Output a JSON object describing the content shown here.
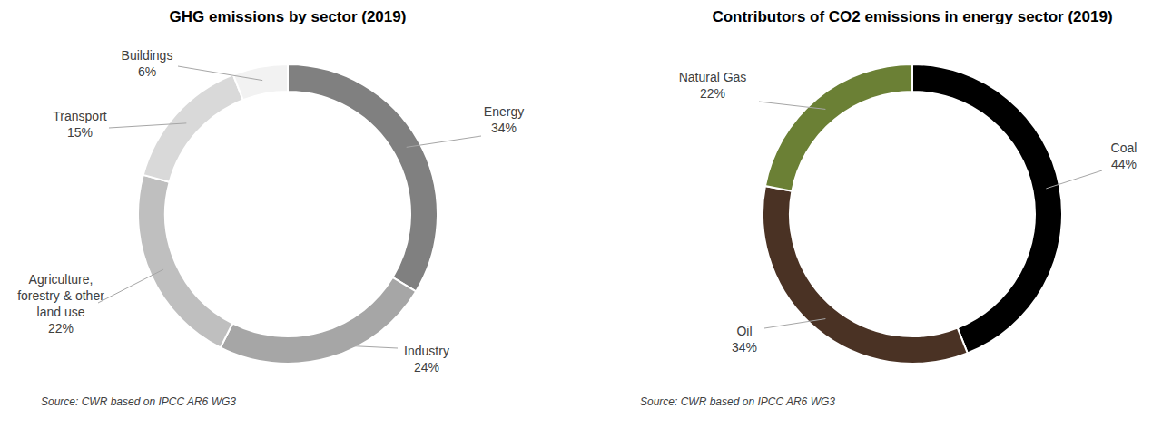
{
  "chart_data": [
    {
      "type": "donut",
      "title": "GHG emissions by sector (2019)",
      "categories": [
        "Energy",
        "Industry",
        "Agriculture,\nforestry & other\nland use",
        "Transport",
        "Buildings"
      ],
      "values": [
        34,
        24,
        22,
        15,
        6
      ],
      "value_labels": [
        "34%",
        "24%",
        "22%",
        "15%",
        "6%"
      ],
      "colors": [
        "#808080",
        "#a6a6a6",
        "#bfbfbf",
        "#d9d9d9",
        "#f2f2f2"
      ],
      "data_labels": true,
      "annotation": "Source: CWR based on IPCC AR6 WG3"
    },
    {
      "type": "donut",
      "title": "Contributors of CO2 emissions in energy sector (2019)",
      "categories": [
        "Coal",
        "Oil",
        "Natural Gas"
      ],
      "values": [
        44,
        34,
        22
      ],
      "value_labels": [
        "44%",
        "34%",
        "22%"
      ],
      "colors": [
        "#000000",
        "#4a3224",
        "#6b8035"
      ],
      "data_labels": true,
      "annotation": "Source: CWR based on IPCC AR6 WG3"
    }
  ]
}
